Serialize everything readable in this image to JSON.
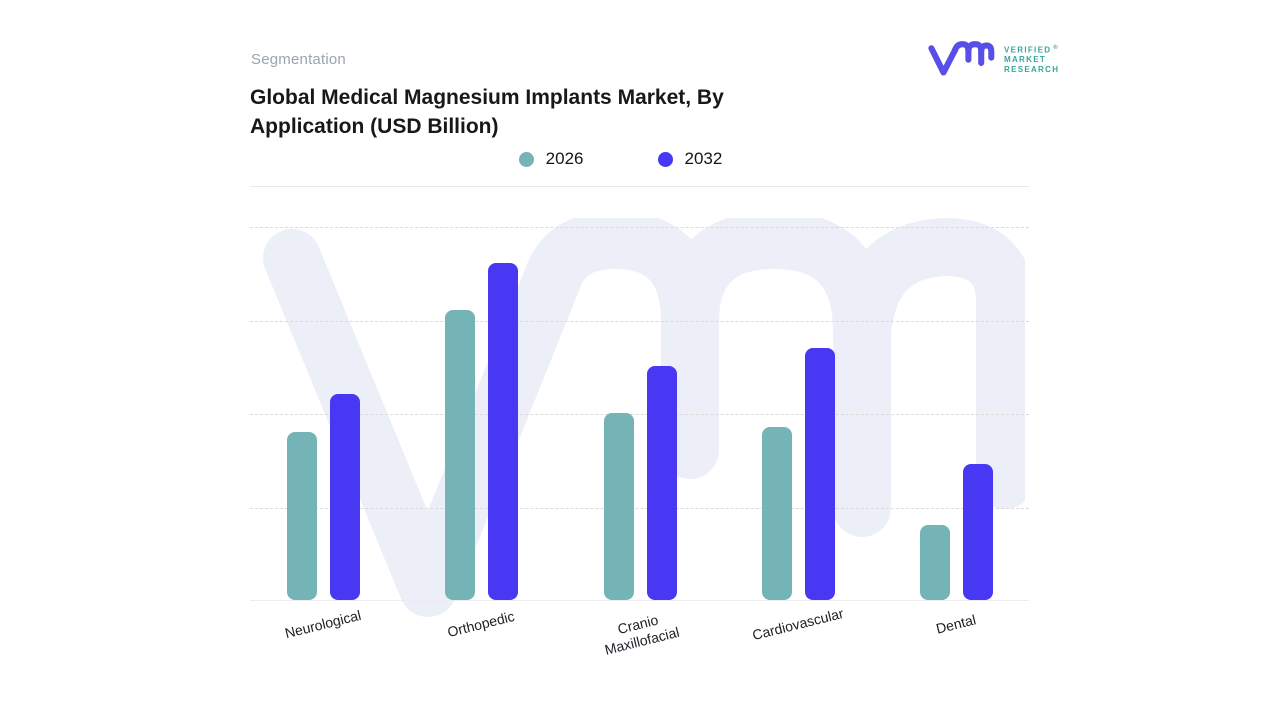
{
  "header": {
    "eyebrow": "Segmentation",
    "title_lines": [
      "Global Medical Magnesium Implants Market, By",
      "Application (USD Billion)"
    ]
  },
  "logo": {
    "mark_name": "vmr-monogram",
    "mark_color": "#584EE8",
    "text_color": "#35A79F",
    "lines": [
      "VERIFIED",
      "MARKET",
      "RESEARCH"
    ],
    "registered": "®"
  },
  "legend": {
    "items": [
      {
        "label": "2026",
        "color": "#74B4B7"
      },
      {
        "label": "2032",
        "color": "#4837F3"
      }
    ]
  },
  "chart_data": {
    "type": "bar",
    "title": "Global Medical Magnesium Implants Market, By Application (USD Billion)",
    "xlabel": "",
    "ylabel": "USD Billion",
    "categories": [
      "Neurological",
      "Orthopedic",
      "Cranio Maxillofacial",
      "Cardiovascular",
      "Dental"
    ],
    "series": [
      {
        "name": "2026",
        "color": "#74B4B7",
        "values": [
          1.8,
          3.1,
          2.0,
          1.85,
          0.8
        ]
      },
      {
        "name": "2032",
        "color": "#4837F3",
        "values": [
          2.2,
          3.6,
          2.5,
          2.7,
          1.45
        ]
      }
    ],
    "ylim": [
      0,
      4
    ],
    "y_axis_labels_visible": false,
    "gridlines": "horizontal dashed, unlabeled, 5 lines including baseline",
    "legend_position": "top center",
    "note": "values estimated from gridline spacing; axis has no numeric tick labels"
  },
  "watermark": {
    "name": "vmr-logo-watermark",
    "color": "#EDEFF8"
  }
}
